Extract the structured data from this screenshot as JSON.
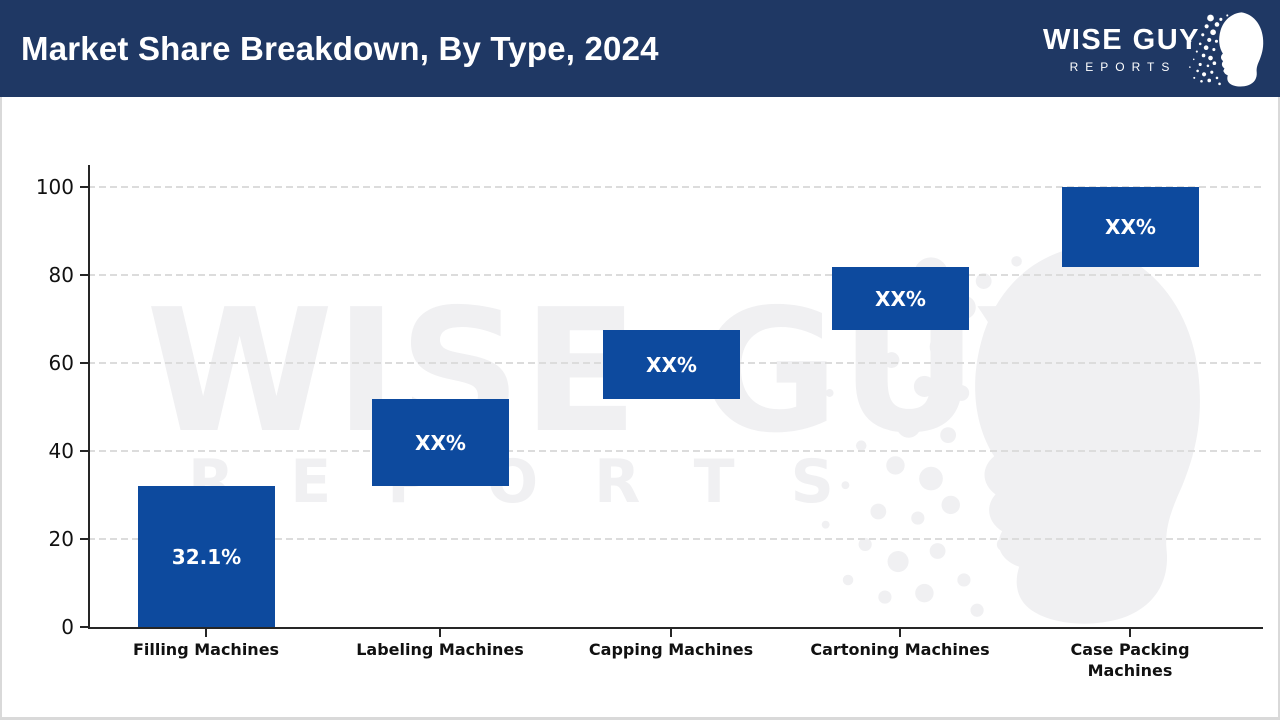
{
  "header": {
    "title": "Market Share Breakdown, By Type, 2024",
    "logo": {
      "name": "WISE GUY",
      "sub": "REPORTS"
    }
  },
  "watermark": {
    "text": "WISE GUY",
    "sub": "REPORTS"
  },
  "colors": {
    "header_bg": "#1f3864",
    "bar": "#0d4a9e",
    "grid": "#dcdcdc",
    "axis": "#262626",
    "watermark": "#f0f0f2",
    "frame": "#d9d9d9",
    "text": "#111111",
    "bar_label": "#ffffff"
  },
  "chart_data": {
    "type": "bar",
    "variant": "waterfall",
    "title": "Market Share Breakdown, By Type, 2024",
    "categories": [
      "Filling Machines",
      "Labeling Machines",
      "Capping Machines",
      "Cartoning Machines",
      "Case Packing Machines"
    ],
    "tick_labels": [
      "Filling Machines",
      "Labeling Machines",
      "Capping Machines",
      "Cartoning Machines",
      "Case Packing\nMachines"
    ],
    "segments": [
      {
        "category": "Filling Machines",
        "start": 0,
        "end": 32.1,
        "label": "32.1%"
      },
      {
        "category": "Labeling Machines",
        "start": 32.1,
        "end": 51.8,
        "label": "XX%"
      },
      {
        "category": "Capping Machines",
        "start": 51.8,
        "end": 67.5,
        "label": "XX%"
      },
      {
        "category": "Cartoning Machines",
        "start": 67.5,
        "end": 81.8,
        "label": "XX%"
      },
      {
        "category": "Case Packing Machines",
        "start": 81.8,
        "end": 100,
        "label": "XX%"
      }
    ],
    "xlabel": "",
    "ylabel": "",
    "yticks": [
      0,
      20,
      40,
      60,
      80,
      100
    ],
    "ylim": [
      0,
      105
    ],
    "grid": "horizontal-dashed",
    "legend": "none"
  }
}
